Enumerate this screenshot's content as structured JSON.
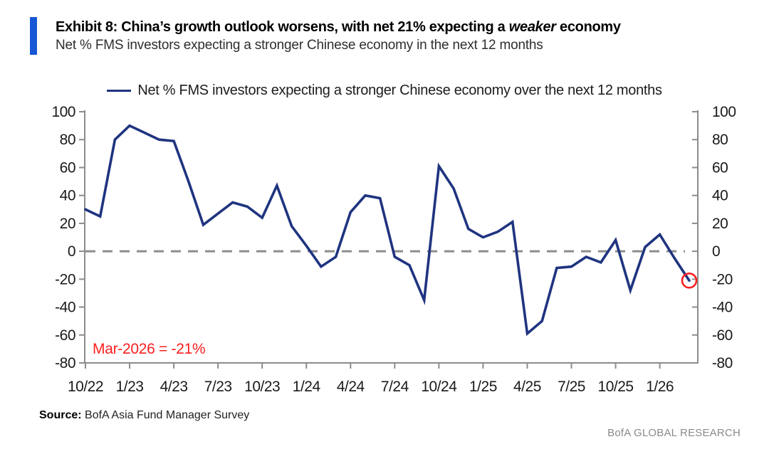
{
  "header": {
    "exhibit_title_prefix": "Exhibit 8: China’s growth outlook worsens, with net 21% expecting a ",
    "exhibit_title_italic": "weaker",
    "exhibit_title_suffix": " economy",
    "subtitle": "Net % FMS investors expecting a stronger Chinese economy in the next 12 months",
    "accent_color": "#1657d5"
  },
  "legend": {
    "label": "Net % FMS investors expecting a stronger Chinese economy over the next 12 months"
  },
  "chart_data": {
    "type": "line",
    "title": "Net % FMS investors expecting a stronger Chinese economy over the next 12 months",
    "x": [
      "10/22",
      "11/22",
      "12/22",
      "1/23",
      "2/23",
      "3/23",
      "4/23",
      "5/23",
      "6/23",
      "7/23",
      "8/23",
      "9/23",
      "10/23",
      "11/23",
      "12/23",
      "1/24",
      "2/24",
      "3/24",
      "4/24",
      "5/24",
      "6/24",
      "7/24",
      "8/24",
      "9/24",
      "10/24",
      "11/24",
      "12/24",
      "1/25",
      "2/25",
      "3/25",
      "4/25",
      "5/25",
      "6/25",
      "7/25",
      "8/25",
      "9/25",
      "10/25",
      "11/25",
      "12/25",
      "1/26",
      "2/26",
      "3/26"
    ],
    "series": [
      {
        "name": "Net % FMS investors expecting a stronger Chinese economy over the next 12 months",
        "color": "#1f3480",
        "values": [
          30,
          25,
          80,
          90,
          85,
          80,
          79,
          50,
          19,
          27,
          35,
          32,
          24,
          47,
          18,
          4,
          -11,
          -4,
          28,
          40,
          38,
          -4,
          -10,
          -35,
          61,
          45,
          16,
          10,
          14,
          21,
          -59,
          -50,
          -12,
          -11,
          -4,
          -8,
          8,
          -28,
          3,
          12,
          -5,
          -21
        ]
      }
    ],
    "x_tick_labels": [
      "10/22",
      "1/23",
      "4/23",
      "7/23",
      "10/23",
      "1/24",
      "4/24",
      "7/24",
      "10/24",
      "1/25",
      "4/25",
      "7/25",
      "10/25",
      "1/26"
    ],
    "y_ticks": [
      100,
      80,
      60,
      40,
      20,
      0,
      -20,
      -40,
      -60,
      -80
    ],
    "ylim": [
      -80,
      100
    ],
    "zero_line": true,
    "grid": "off",
    "legend_position": "top-center",
    "annotation": {
      "text": "Mar-2026 = -21%",
      "color": "#f91f1f"
    },
    "endpoint_marker": {
      "shape": "circle",
      "color": "#f91f1f",
      "month": "3/26",
      "value": -21
    }
  },
  "footer": {
    "source_label": "Source:",
    "source_text": " BofA Asia Fund Manager Survey",
    "branding": "BofA GLOBAL RESEARCH"
  }
}
